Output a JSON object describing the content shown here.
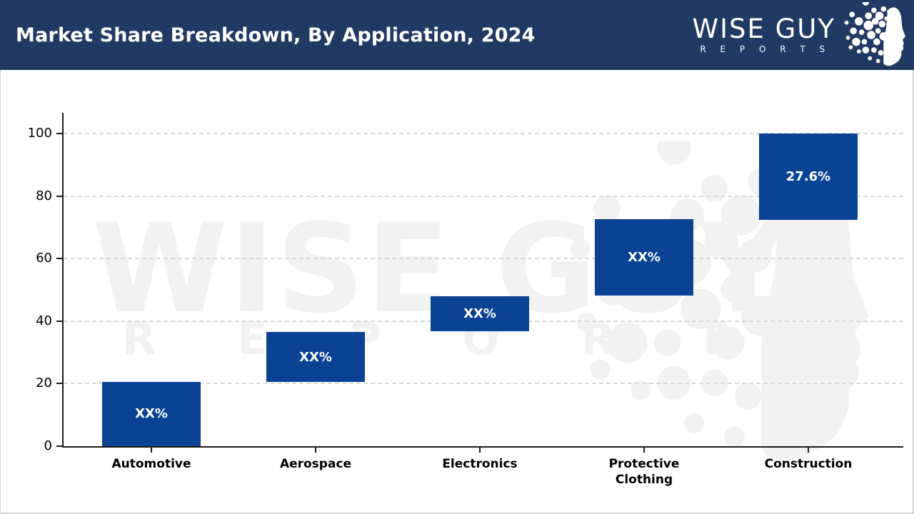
{
  "header": {
    "title": "Market Share Breakdown, By Application, 2024",
    "logo": {
      "brand": "WISE GUY",
      "subtitle": "R E P O R T S"
    }
  },
  "watermark": {
    "line1": "WISE GUY",
    "line2": "R E P O R T S"
  },
  "colors": {
    "header_navy": "#213a64",
    "bar_blue": "#0a4294",
    "axis": "#1a1a1a",
    "gridline": "#d9d9d9",
    "bar_label": "#ffffff",
    "tick_label": "#000000",
    "watermark": "#f2f2f2",
    "border": "#d6d6d6"
  },
  "chart_data": {
    "type": "bar",
    "subtype": "waterfall",
    "title": "Market Share Breakdown, By Application, 2024",
    "xlabel": "",
    "ylabel": "",
    "ylim": [
      0,
      100
    ],
    "yticks": [
      0,
      20,
      40,
      60,
      80,
      100
    ],
    "grid": true,
    "gridstyle": "dashed",
    "legend": false,
    "categories": [
      "Automotive",
      "Aerospace",
      "Electronics",
      "Protective\nClothing",
      "Construction"
    ],
    "segments": [
      {
        "category": "Automotive",
        "start": 0,
        "end": 20.4,
        "value": 20.4,
        "label": "XX%"
      },
      {
        "category": "Aerospace",
        "start": 20.4,
        "end": 36.4,
        "value": 16.0,
        "label": "XX%"
      },
      {
        "category": "Electronics",
        "start": 36.6,
        "end": 47.9,
        "value": 11.3,
        "label": "XX%"
      },
      {
        "category": "Protective Clothing",
        "start": 48.2,
        "end": 72.5,
        "value": 24.3,
        "label": "XX%"
      },
      {
        "category": "Construction",
        "start": 72.4,
        "end": 100,
        "value": 27.6,
        "label": "27.6%"
      }
    ]
  }
}
